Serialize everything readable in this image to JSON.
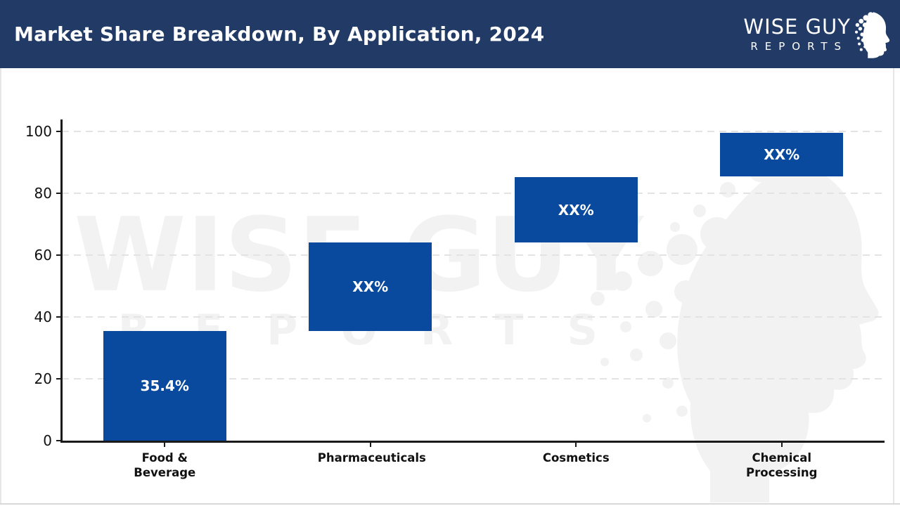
{
  "header": {
    "title": "Market Share Breakdown, By Application, 2024",
    "bg_color": "#213A66",
    "logo": {
      "wordmark": "WISE GUY",
      "subtext": "REPORTS"
    }
  },
  "watermark": {
    "line1": "WISE GUY",
    "line2": "REPORTS"
  },
  "chart_data": {
    "type": "bar",
    "subtype": "waterfall",
    "title": "Market Share Breakdown, By Application, 2024",
    "categories": [
      "Food & Beverage",
      "Pharmaceuticals",
      "Cosmetics",
      "Chemical Processing"
    ],
    "segments": [
      {
        "category": "Food & Beverage",
        "start": 0,
        "end": 35.4,
        "value_est": 35.4,
        "label": "35.4%"
      },
      {
        "category": "Pharmaceuticals",
        "start": 35.4,
        "end": 64.0,
        "value_est": 28.6,
        "label": "XX%"
      },
      {
        "category": "Cosmetics",
        "start": 64.0,
        "end": 85.3,
        "value_est": 21.3,
        "label": "XX%"
      },
      {
        "category": "Chemical Processing",
        "start": 85.5,
        "end": 99.5,
        "value_est": 14.0,
        "label": "XX%"
      }
    ],
    "xlabel": "",
    "ylabel": "",
    "ylim": [
      0,
      100
    ],
    "yticks": [
      0,
      20,
      40,
      60,
      80,
      100
    ],
    "grid": "horizontal-dashed",
    "legend": "none",
    "bar_color": "#0A4A9E",
    "bar_label_color": "#FFFFFF",
    "axis_color": "#1A1A1A",
    "gridline_color": "#E3E3E3"
  }
}
